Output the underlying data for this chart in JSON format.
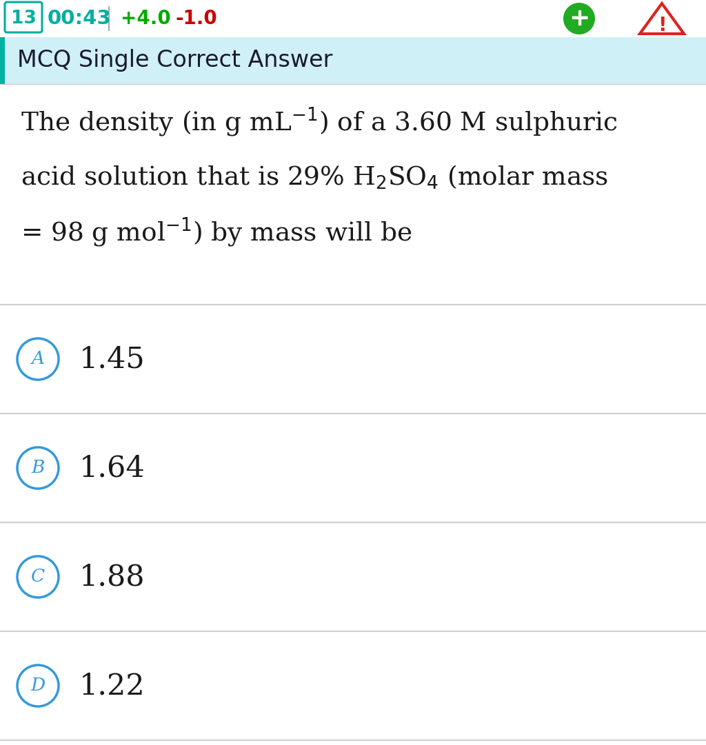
{
  "bg_color": "#ffffff",
  "mcq_label": "MCQ Single Correct Answer",
  "header_number": "13",
  "header_time": "00:43",
  "header_plus": "+4.0",
  "header_minus": "-1.0",
  "options": [
    {
      "label": "A",
      "text": "1.45"
    },
    {
      "label": "B",
      "text": "1.64"
    },
    {
      "label": "C",
      "text": "1.88"
    },
    {
      "label": "D",
      "text": "1.22"
    }
  ],
  "option_circle_color": "#3399dd",
  "option_text_color": "#1a1a1a",
  "separator_color": "#d0d0d0",
  "header_number_color": "#00b0a0",
  "header_time_color": "#00b0a0",
  "header_plus_color": "#00aa00",
  "header_minus_color": "#cc0000",
  "left_bar_color": "#00b0a0",
  "mcq_bg_color": "#d0f0f8",
  "plus_button_color": "#22aa22",
  "warning_border_color": "#dd2222",
  "warning_text_color": "#dd2222"
}
